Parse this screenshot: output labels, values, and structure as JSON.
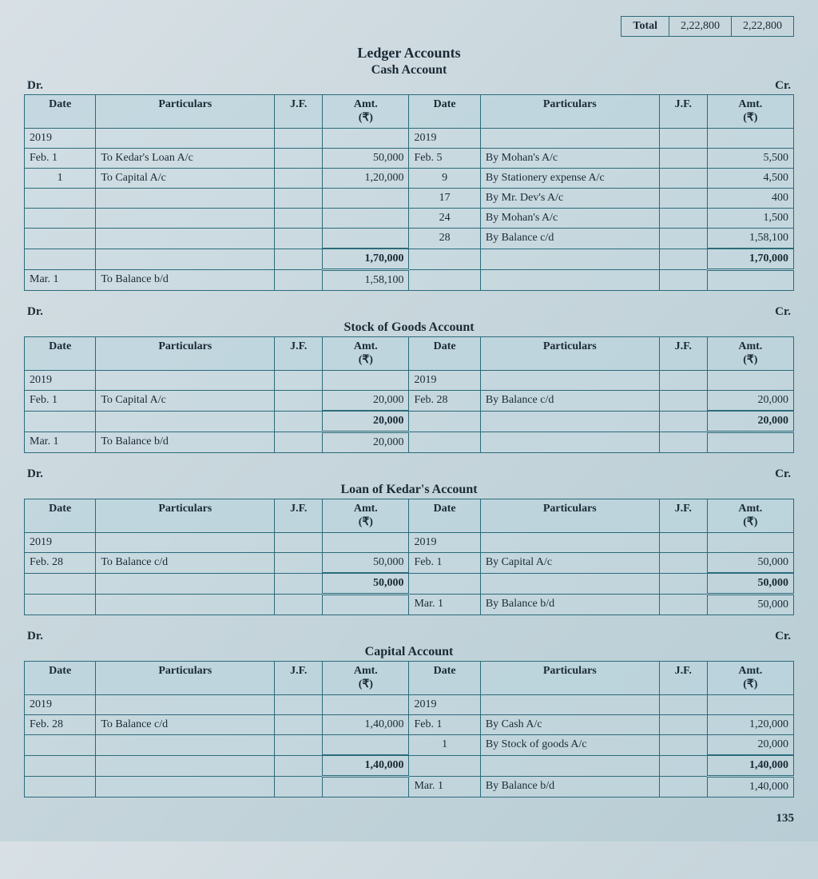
{
  "top_totals": {
    "label": "Total",
    "left": "2,22,800",
    "right": "2,22,800"
  },
  "ledger_heading": "Ledger Accounts",
  "page_number": "135",
  "common": {
    "dr": "Dr.",
    "cr": "Cr.",
    "hdr_date": "Date",
    "hdr_part": "Particulars",
    "hdr_jf": "J.F.",
    "hdr_amt": "Amt.",
    "hdr_amt_sub": "(₹)"
  },
  "cash": {
    "title": "Cash Account",
    "left": {
      "year": "2019",
      "rows": [
        {
          "d": "Feb. 1",
          "p": "To Kedar's Loan A/c",
          "a": "50,000"
        },
        {
          "d": "1",
          "p": "To Capital A/c",
          "a": "1,20,000"
        }
      ],
      "total": "1,70,000",
      "bd": {
        "d": "Mar. 1",
        "p": "To Balance b/d",
        "a": "1,58,100"
      }
    },
    "right": {
      "year": "2019",
      "rows": [
        {
          "d": "Feb. 5",
          "p": "By Mohan's A/c",
          "a": "5,500"
        },
        {
          "d": "9",
          "p": "By Stationery expense A/c",
          "a": "4,500"
        },
        {
          "d": "17",
          "p": "By Mr. Dev's A/c",
          "a": "400"
        },
        {
          "d": "24",
          "p": "By Mohan's A/c",
          "a": "1,500"
        },
        {
          "d": "28",
          "p": "By Balance c/d",
          "a": "1,58,100"
        }
      ],
      "total": "1,70,000"
    }
  },
  "stock": {
    "title": "Stock of Goods Account",
    "left": {
      "year": "2019",
      "rows": [
        {
          "d": "Feb. 1",
          "p": "To Capital A/c",
          "a": "20,000"
        }
      ],
      "total": "20,000",
      "bd": {
        "d": "Mar. 1",
        "p": "To Balance b/d",
        "a": "20,000"
      }
    },
    "right": {
      "year": "2019",
      "rows": [
        {
          "d": "Feb. 28",
          "p": "By Balance c/d",
          "a": "20,000"
        }
      ],
      "total": "20,000"
    }
  },
  "loan": {
    "title": "Loan of Kedar's Account",
    "left": {
      "year": "2019",
      "rows": [
        {
          "d": "Feb. 28",
          "p": "To Balance c/d",
          "a": "50,000"
        }
      ],
      "total": "50,000"
    },
    "right": {
      "year": "2019",
      "rows": [
        {
          "d": "Feb. 1",
          "p": "By Capital A/c",
          "a": "50,000"
        }
      ],
      "total": "50,000",
      "bd": {
        "d": "Mar. 1",
        "p": "By Balance b/d",
        "a": "50,000"
      }
    }
  },
  "capital": {
    "title": "Capital Account",
    "left": {
      "year": "2019",
      "rows": [
        {
          "d": "Feb. 28",
          "p": "To Balance c/d",
          "a": "1,40,000"
        }
      ],
      "total": "1,40,000"
    },
    "right": {
      "year": "2019",
      "rows": [
        {
          "d": "Feb. 1",
          "p": "By Cash A/c",
          "a": "1,20,000"
        },
        {
          "d": "1",
          "p": "By Stock of goods A/c",
          "a": "20,000"
        }
      ],
      "total": "1,40,000",
      "bd": {
        "d": "Mar. 1",
        "p": "By Balance b/d",
        "a": "1,40,000"
      }
    }
  }
}
